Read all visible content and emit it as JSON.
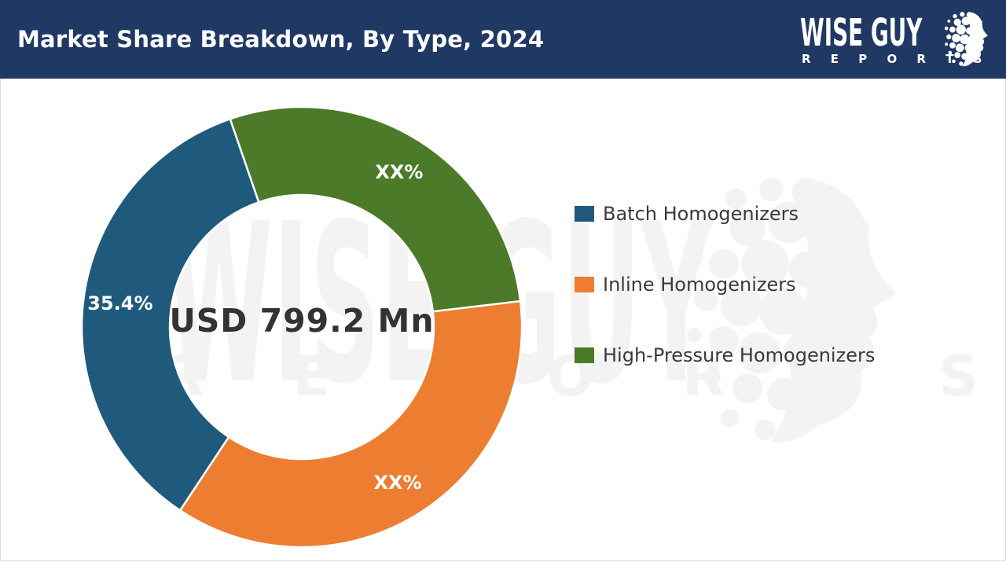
{
  "header": {
    "title": "Market Share Breakdown, By Type, 2024",
    "logo": {
      "name_line": "WISE GUY",
      "reports_line": "R E P O R T S"
    }
  },
  "chart_data": {
    "type": "pie",
    "subtype": "donut",
    "title": "Market Share Breakdown, By Type, 2024",
    "center_label": "USD 799.2 Mn",
    "donut_hole_ratio": 0.6,
    "start_angle_deg": 109,
    "direction": "counterclockwise",
    "legend_position": "right",
    "grid": false,
    "segments": [
      {
        "name": "Batch Homogenizers",
        "value_pct": 35.4,
        "label": "35.4%",
        "color": "#1f5a7d"
      },
      {
        "name": "Inline Homogenizers",
        "value_pct": 36.2,
        "label": "XX%",
        "color": "#ed7d31"
      },
      {
        "name": "High-Pressure Homogenizers",
        "value_pct": 28.4,
        "label": "XX%",
        "color": "#4b7a28"
      }
    ]
  },
  "watermark": {
    "text_large": "WISE GUY",
    "text_small": "R E P O R T S"
  },
  "colors": {
    "header_bg": "#1f3864",
    "batch_blue": "#1f5a7d",
    "inline_orange": "#ed7d31",
    "high_pressure_green": "#4b7a28",
    "center_text": "#333333",
    "legend_text": "#3a3a3a",
    "watermark": "#f3f3f3",
    "frame_border": "#d9d9d9",
    "segment_separator": "#ffffff"
  }
}
